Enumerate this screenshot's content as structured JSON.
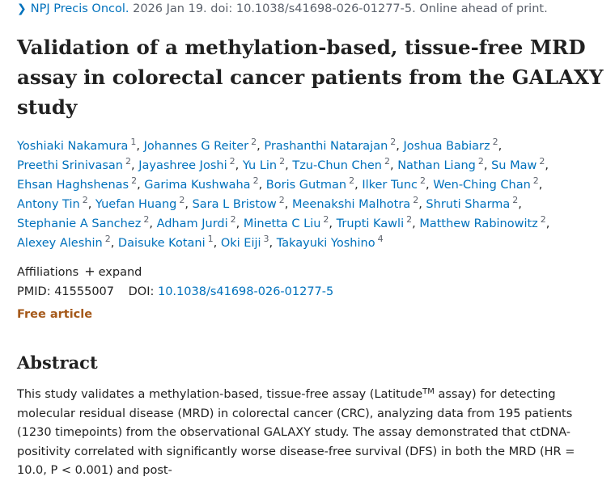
{
  "citation": {
    "journal": "NPJ Precis Oncol.",
    "details": "2026 Jan 19. doi: 10.1038/s41698-026-01277-5. Online ahead of print."
  },
  "title": "Validation of a methylation-based, tissue-free MRD assay in colorectal cancer patients from the GALAXY study",
  "authors": [
    {
      "name": "Yoshiaki Nakamura",
      "aff": "1"
    },
    {
      "name": "Johannes G Reiter",
      "aff": "2"
    },
    {
      "name": "Prashanthi Natarajan",
      "aff": "2"
    },
    {
      "name": "Joshua Babiarz",
      "aff": "2"
    },
    {
      "name": "Preethi Srinivasan",
      "aff": "2"
    },
    {
      "name": "Jayashree Joshi",
      "aff": "2"
    },
    {
      "name": "Yu Lin",
      "aff": "2"
    },
    {
      "name": "Tzu-Chun Chen",
      "aff": "2"
    },
    {
      "name": "Nathan Liang",
      "aff": "2"
    },
    {
      "name": "Su Maw",
      "aff": "2"
    },
    {
      "name": "Ehsan Haghshenas",
      "aff": "2"
    },
    {
      "name": "Garima Kushwaha",
      "aff": "2"
    },
    {
      "name": "Boris Gutman",
      "aff": "2"
    },
    {
      "name": "Ilker Tunc",
      "aff": "2"
    },
    {
      "name": "Wen-Ching Chan",
      "aff": "2"
    },
    {
      "name": "Antony Tin",
      "aff": "2"
    },
    {
      "name": "Yuefan Huang",
      "aff": "2"
    },
    {
      "name": "Sara L Bristow",
      "aff": "2"
    },
    {
      "name": "Meenakshi Malhotra",
      "aff": "2"
    },
    {
      "name": "Shruti Sharma",
      "aff": "2"
    },
    {
      "name": "Stephanie A Sanchez",
      "aff": "2"
    },
    {
      "name": "Adham Jurdi",
      "aff": "2"
    },
    {
      "name": "Minetta C Liu",
      "aff": "2"
    },
    {
      "name": "Trupti Kawli",
      "aff": "2"
    },
    {
      "name": "Matthew Rabinowitz",
      "aff": "2"
    },
    {
      "name": "Alexey Aleshin",
      "aff": "2"
    },
    {
      "name": "Daisuke Kotani",
      "aff": "1"
    },
    {
      "name": "Oki Eiji",
      "aff": "3"
    },
    {
      "name": "Takayuki Yoshino",
      "aff": "4"
    }
  ],
  "affiliations": {
    "label": "Affiliations",
    "toggle": "expand"
  },
  "identifiers": {
    "pmid_label": "PMID:",
    "pmid": "41555007",
    "doi_label": "DOI:",
    "doi": "10.1038/s41698-026-01277-5"
  },
  "free_article": "Free article",
  "abstract": {
    "heading": "Abstract",
    "part1": "This study validates a methylation-based, tissue-free assay (Latitude",
    "tm": "TM",
    "part2": " assay) for detecting molecular residual disease (MRD) in colorectal cancer (CRC), analyzing data from 195 patients (1230 timepoints) from the observational GALAXY study. The assay demonstrated that ctDNA-positivity correlated with significantly worse disease-free survival (DFS) in both the MRD (HR = 10.0, P < 0.001) and post-"
  },
  "colors": {
    "link": "#0071bc",
    "free_article": "#a5591a",
    "text": "#212121",
    "muted": "#5b616b"
  }
}
